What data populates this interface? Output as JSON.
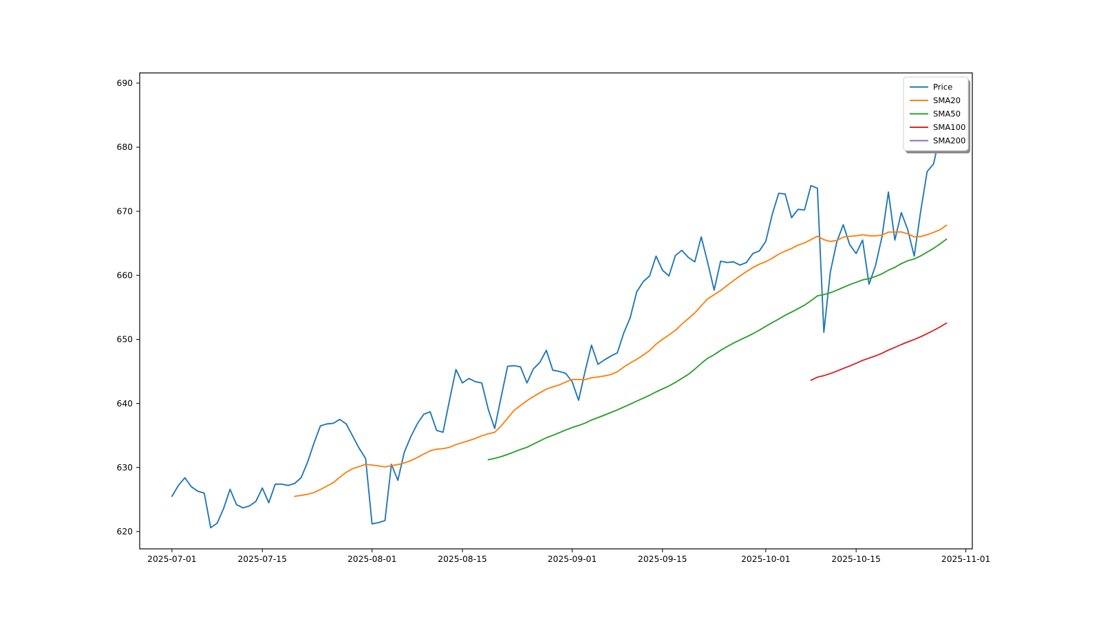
{
  "figure": {
    "background": "#ffffff",
    "spine_color": "#000000",
    "tick_color": "#000000"
  },
  "chart_data": {
    "type": "line",
    "title": "",
    "xlabel": "",
    "ylabel": "",
    "grid": false,
    "ylim": [
      617.3,
      691.6
    ],
    "xlim_dates": [
      "2025-06-26",
      "2025-11-02"
    ],
    "y_ticks": [
      620,
      630,
      640,
      650,
      660,
      670,
      680,
      690
    ],
    "x_tick_labels": [
      "2025-07-01",
      "2025-07-15",
      "2025-08-01",
      "2025-08-15",
      "2025-09-01",
      "2025-09-15",
      "2025-10-01",
      "2025-10-15",
      "2025-11-01"
    ],
    "legend": {
      "position": "upper right",
      "shadow": true,
      "border_color": "#cccccc",
      "background": "#ffffff",
      "labels": [
        "Price",
        "SMA20",
        "SMA50",
        "SMA100",
        "SMA200"
      ]
    },
    "x_dates": [
      "2025-07-01",
      "2025-07-02",
      "2025-07-03",
      "2025-07-04",
      "2025-07-05",
      "2025-07-06",
      "2025-07-07",
      "2025-07-08",
      "2025-07-09",
      "2025-07-10",
      "2025-07-11",
      "2025-07-12",
      "2025-07-13",
      "2025-07-14",
      "2025-07-15",
      "2025-07-16",
      "2025-07-17",
      "2025-07-18",
      "2025-07-19",
      "2025-07-20",
      "2025-07-21",
      "2025-07-22",
      "2025-07-23",
      "2025-07-24",
      "2025-07-25",
      "2025-07-26",
      "2025-07-27",
      "2025-07-28",
      "2025-07-29",
      "2025-07-30",
      "2025-07-31",
      "2025-08-01",
      "2025-08-02",
      "2025-08-03",
      "2025-08-04",
      "2025-08-05",
      "2025-08-06",
      "2025-08-07",
      "2025-08-08",
      "2025-08-09",
      "2025-08-10",
      "2025-08-11",
      "2025-08-12",
      "2025-08-13",
      "2025-08-14",
      "2025-08-15",
      "2025-08-16",
      "2025-08-17",
      "2025-08-18",
      "2025-08-19",
      "2025-08-20",
      "2025-08-21",
      "2025-08-22",
      "2025-08-23",
      "2025-08-24",
      "2025-08-25",
      "2025-08-26",
      "2025-08-27",
      "2025-08-28",
      "2025-08-29",
      "2025-08-30",
      "2025-08-31",
      "2025-09-01",
      "2025-09-02",
      "2025-09-03",
      "2025-09-04",
      "2025-09-05",
      "2025-09-06",
      "2025-09-07",
      "2025-09-08",
      "2025-09-09",
      "2025-09-10",
      "2025-09-11",
      "2025-09-12",
      "2025-09-13",
      "2025-09-14",
      "2025-09-15",
      "2025-09-16",
      "2025-09-17",
      "2025-09-18",
      "2025-09-19",
      "2025-09-20",
      "2025-09-21",
      "2025-09-22",
      "2025-09-23",
      "2025-09-24",
      "2025-09-25",
      "2025-09-26",
      "2025-09-27",
      "2025-09-28",
      "2025-09-29",
      "2025-09-30",
      "2025-10-01",
      "2025-10-02",
      "2025-10-03",
      "2025-10-04",
      "2025-10-05",
      "2025-10-06",
      "2025-10-07",
      "2025-10-08",
      "2025-10-09",
      "2025-10-10",
      "2025-10-11",
      "2025-10-12",
      "2025-10-13",
      "2025-10-14",
      "2025-10-15",
      "2025-10-16",
      "2025-10-17",
      "2025-10-18",
      "2025-10-19",
      "2025-10-20",
      "2025-10-21",
      "2025-10-22",
      "2025-10-23",
      "2025-10-24",
      "2025-10-25",
      "2025-10-26",
      "2025-10-27",
      "2025-10-28",
      "2025-10-29"
    ],
    "series": [
      {
        "name": "Price",
        "color": "#1f77b4",
        "values": [
          625.5,
          627.2,
          628.4,
          627.0,
          626.3,
          626.0,
          620.6,
          621.3,
          623.6,
          626.6,
          624.2,
          623.7,
          624.0,
          624.7,
          626.8,
          624.5,
          627.4,
          627.4,
          627.2,
          627.5,
          628.4,
          630.8,
          633.8,
          636.5,
          636.8,
          636.9,
          637.5,
          636.8,
          634.9,
          633.0,
          631.4,
          621.2,
          621.4,
          621.7,
          630.5,
          628.0,
          632.4,
          634.8,
          636.8,
          638.3,
          638.7,
          635.8,
          635.5,
          640.5,
          645.3,
          643.2,
          643.9,
          643.4,
          643.2,
          639.1,
          636.1,
          641.0,
          645.8,
          645.9,
          645.7,
          643.2,
          645.4,
          646.4,
          648.3,
          645.2,
          645.0,
          644.7,
          643.4,
          640.5,
          645.0,
          649.1,
          646.1,
          646.8,
          647.4,
          647.9,
          651.0,
          653.4,
          657.4,
          659.0,
          659.9,
          663.0,
          660.8,
          659.9,
          663.1,
          663.9,
          662.8,
          662.1,
          666.0,
          662.0,
          657.7,
          662.2,
          662.0,
          662.1,
          661.6,
          662.0,
          663.4,
          663.8,
          665.3,
          669.5,
          672.8,
          672.7,
          669.0,
          670.3,
          670.2,
          674.0,
          673.6,
          651.1,
          660.5,
          665.2,
          667.9,
          664.8,
          663.4,
          665.5,
          658.6,
          661.5,
          666.0,
          673.0,
          665.5,
          669.8,
          667.1,
          663.0,
          670.0,
          676.2,
          677.4,
          682.0,
          688.0
        ]
      },
      {
        "name": "SMA20",
        "color": "#ff7f0e",
        "window": 20,
        "derived_from": "Price"
      },
      {
        "name": "SMA50",
        "color": "#2ca02c",
        "window": 50,
        "derived_from": "Price"
      },
      {
        "name": "SMA100",
        "color": "#d62728",
        "window": 100,
        "derived_from": "Price"
      },
      {
        "name": "SMA200",
        "color": "#9467bd",
        "window": 200,
        "derived_from": "Price"
      }
    ]
  }
}
